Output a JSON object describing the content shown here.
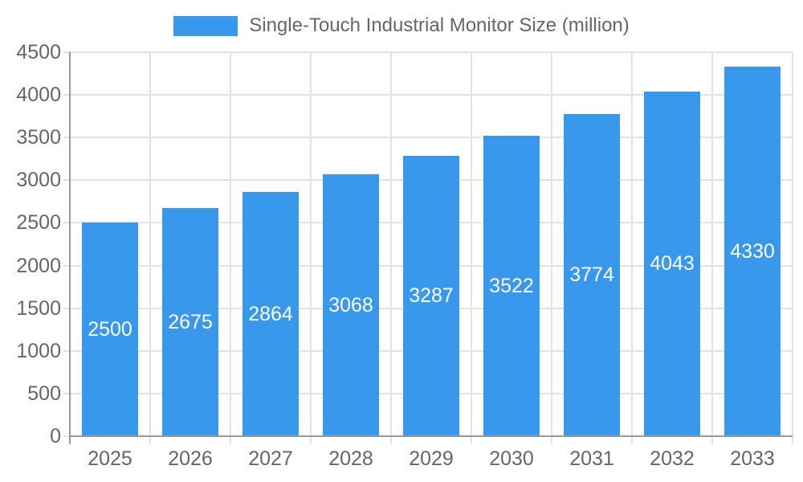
{
  "legend": {
    "label": "Single-Touch Industrial Monitor Size (million)"
  },
  "chart_data": {
    "type": "bar",
    "title": "Single-Touch Industrial Monitor Size (million)",
    "series_name": "Single-Touch Industrial Monitor Size (million)",
    "categories": [
      "2025",
      "2026",
      "2027",
      "2028",
      "2029",
      "2030",
      "2031",
      "2032",
      "2033"
    ],
    "values": [
      2500,
      2675,
      2864,
      3068,
      3287,
      3522,
      3774,
      4043,
      4330
    ],
    "bar_labels": [
      "2500",
      "2675",
      "2864",
      "3068",
      "3287",
      "3522",
      "3774",
      "4043",
      "4330"
    ],
    "xlabel": "",
    "ylabel": "",
    "ylim": [
      0,
      4500
    ],
    "y_tick_step": 500,
    "y_ticks": [
      "0",
      "500",
      "1000",
      "1500",
      "2000",
      "2500",
      "3000",
      "3500",
      "4000",
      "4500"
    ],
    "grid": true,
    "legend_position": "top",
    "colors": {
      "bar": "#3898ec",
      "bar_value_text": "#ffffff",
      "grid": "#e3e3e3",
      "axis": "#999999",
      "tick_label": "#666666",
      "legend_text": "#666666",
      "background": "#ffffff"
    }
  }
}
